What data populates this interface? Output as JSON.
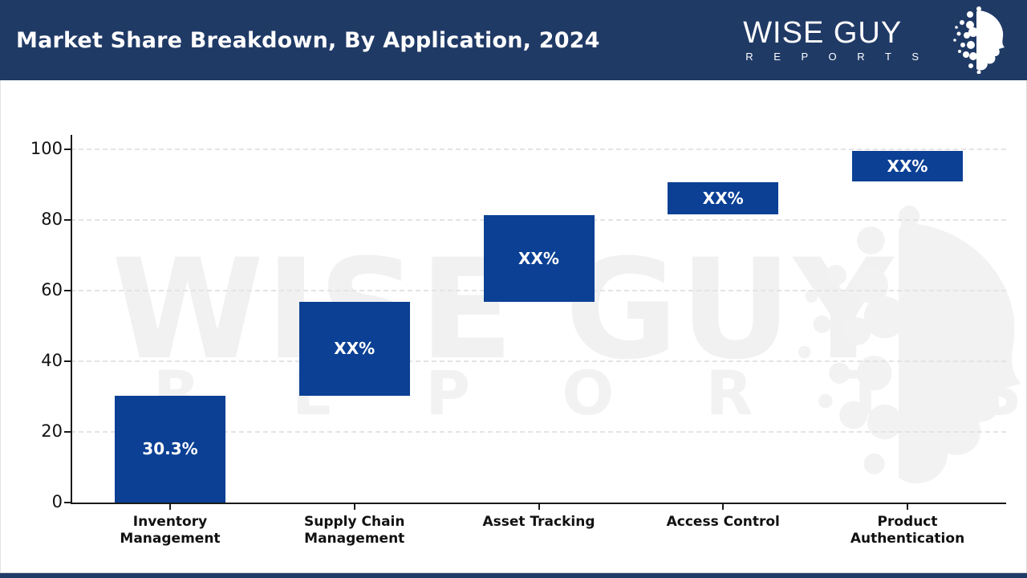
{
  "header": {
    "title": "Market Share Breakdown, By Application, 2024",
    "logo": {
      "line1": "WISE GUY",
      "line2": "R E P O R T S"
    }
  },
  "watermark": {
    "line1": "WISE GUY",
    "line2": "R E P O R T S"
  },
  "chart_data": {
    "type": "bar",
    "subtype": "floating-segment-waterfall",
    "title": "Market Share Breakdown, By Application, 2024",
    "xlabel": "",
    "ylabel": "",
    "ylim": [
      0,
      100
    ],
    "yticks": [
      0,
      20,
      40,
      60,
      80,
      100
    ],
    "grid": "horizontal-dashed",
    "legend": "none",
    "bar_color": "#0b4094",
    "bar_label_color": "#ffffff",
    "categories": [
      "Inventory\nManagement",
      "Supply Chain\nManagement",
      "Asset Tracking",
      "Access Control",
      "Product\nAuthentication"
    ],
    "segments": [
      {
        "category": "Inventory Management",
        "start": 0,
        "end": 30.3,
        "label": "30.3%"
      },
      {
        "category": "Supply Chain Management",
        "start": 30.3,
        "end": 56.8,
        "label": "XX%"
      },
      {
        "category": "Asset Tracking",
        "start": 56.8,
        "end": 81.3,
        "label": "XX%"
      },
      {
        "category": "Access Control",
        "start": 81.5,
        "end": 90.6,
        "label": "XX%"
      },
      {
        "category": "Product Authentication",
        "start": 90.8,
        "end": 99.5,
        "label": "XX%"
      }
    ]
  }
}
